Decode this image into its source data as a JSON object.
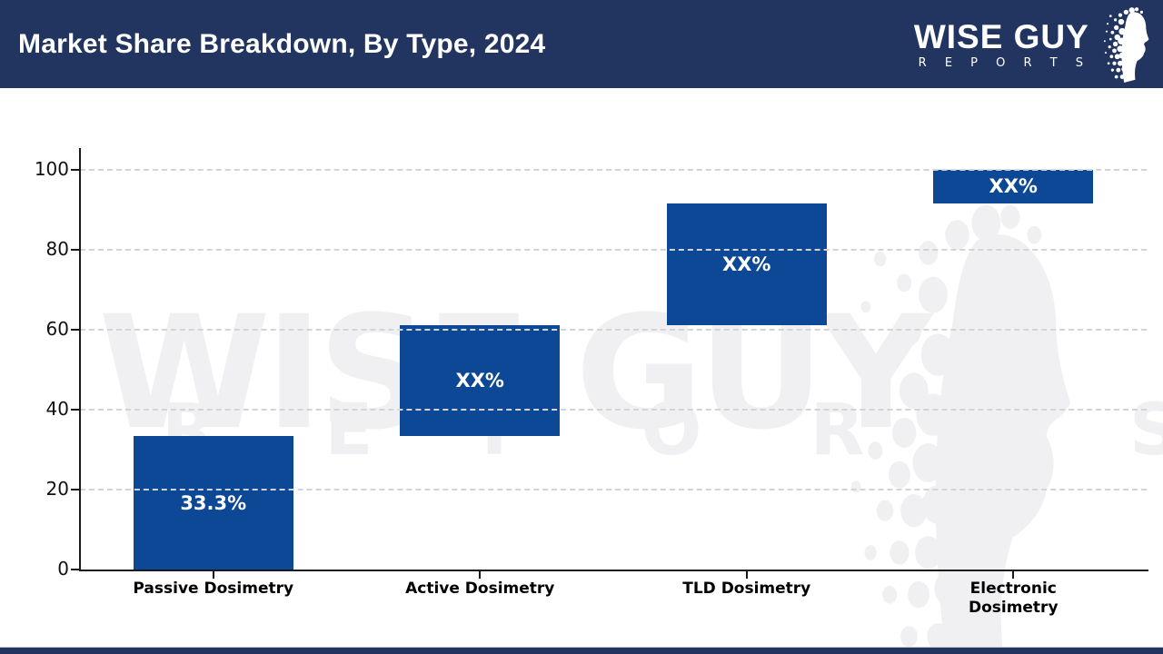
{
  "header": {
    "title": "Market Share Breakdown, By Type, 2024",
    "logo_line1": "WISE GUY",
    "logo_line2": "R E P O R T S"
  },
  "watermark": {
    "line1": "WISE GUY",
    "line2": "R E P O R T S"
  },
  "colors": {
    "header_bg": "#213560",
    "footer_bg": "#213560",
    "bar": "#0d4896",
    "bar_label": "#ffffff",
    "grid": "#d4d4d4",
    "axis": "#1a1a1a",
    "watermark": "#f0f0f2",
    "title_text": "#ffffff"
  },
  "chart_data": {
    "type": "bar",
    "subtype": "waterfall-floating-bars",
    "title": "Market Share Breakdown, By Type, 2024",
    "xlabel": "",
    "ylabel": "",
    "categories": [
      "Passive Dosimetry",
      "Active Dosimetry",
      "TLD Dosimetry",
      "Electronic\nDosimetry"
    ],
    "series": [
      {
        "name": "Passive Dosimetry",
        "start": 0,
        "end": 33.3,
        "label": "33.3%"
      },
      {
        "name": "Active Dosimetry",
        "start": 33.3,
        "end": 61.1,
        "label": "XX%"
      },
      {
        "name": "TLD Dosimetry",
        "start": 61.1,
        "end": 91.7,
        "label": "XX%"
      },
      {
        "name": "Electronic Dosimetry",
        "start": 91.7,
        "end": 100,
        "label": "XX%"
      }
    ],
    "yticks": [
      0,
      20,
      40,
      60,
      80,
      100
    ],
    "ylim": [
      0,
      105
    ],
    "grid": true,
    "grid_style": "dashed",
    "legend": false
  }
}
